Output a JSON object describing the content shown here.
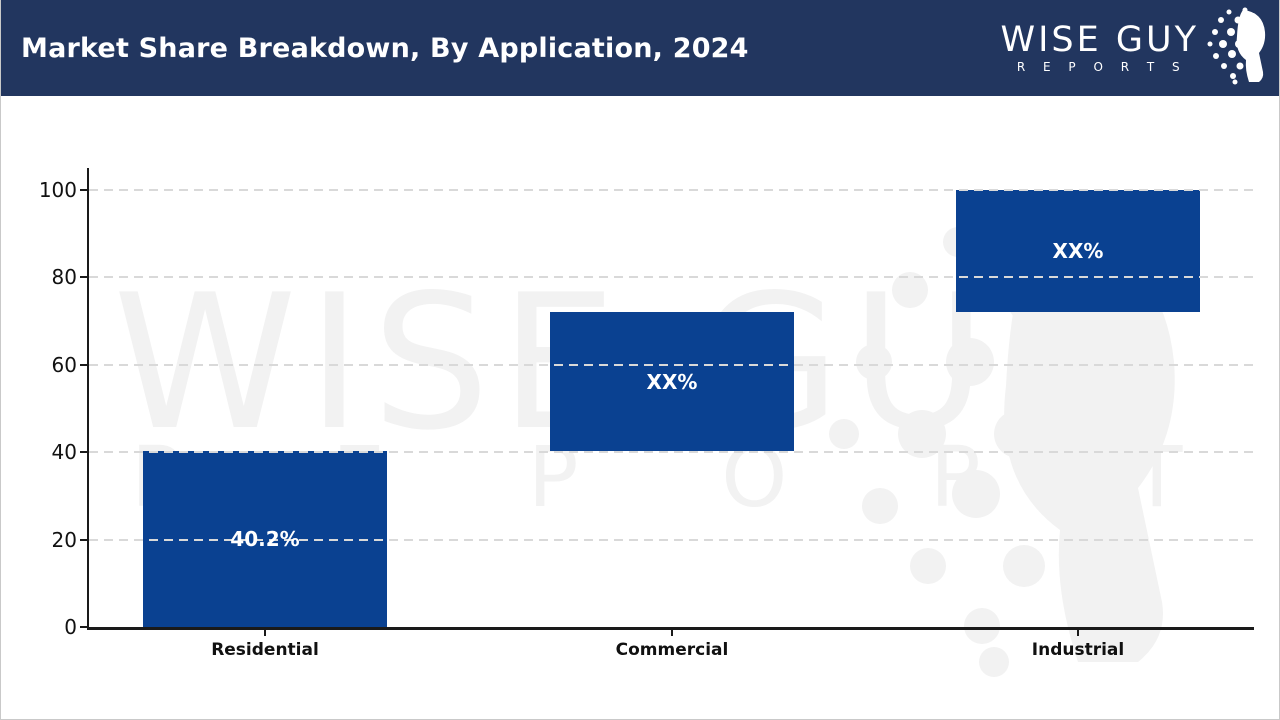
{
  "header": {
    "title": "Market Share Breakdown, By Application, 2024"
  },
  "logo": {
    "line1": "WISE GUY",
    "line2": "R E P O R T S"
  },
  "watermark": {
    "line1": "WISE GUY",
    "line2": "R E P O R T S"
  },
  "chart_data": {
    "type": "bar",
    "subtype": "waterfall-segments",
    "title": "Market Share Breakdown, By Application, 2024",
    "categories": [
      "Residential",
      "Commercial",
      "Industrial"
    ],
    "segments": [
      {
        "category": "Residential",
        "start": 0,
        "end": 40.2,
        "label": "40.2%"
      },
      {
        "category": "Commercial",
        "start": 40.2,
        "end": 72,
        "label": "XX%"
      },
      {
        "category": "Industrial",
        "start": 72,
        "end": 100,
        "label": "XX%"
      }
    ],
    "yticks": [
      0,
      20,
      40,
      60,
      80,
      100
    ],
    "ylim": [
      0,
      105
    ],
    "grid": "horizontal-dashed",
    "grid_on_top": true,
    "legend": "none",
    "bar_color": "#0a4191",
    "bar_label_color": "#ffffff",
    "axis_color": "#1a1a1a",
    "gridline_color": "#d9d9d9",
    "header_bg": "#22365f",
    "watermark_color": "#f2f2f2"
  }
}
